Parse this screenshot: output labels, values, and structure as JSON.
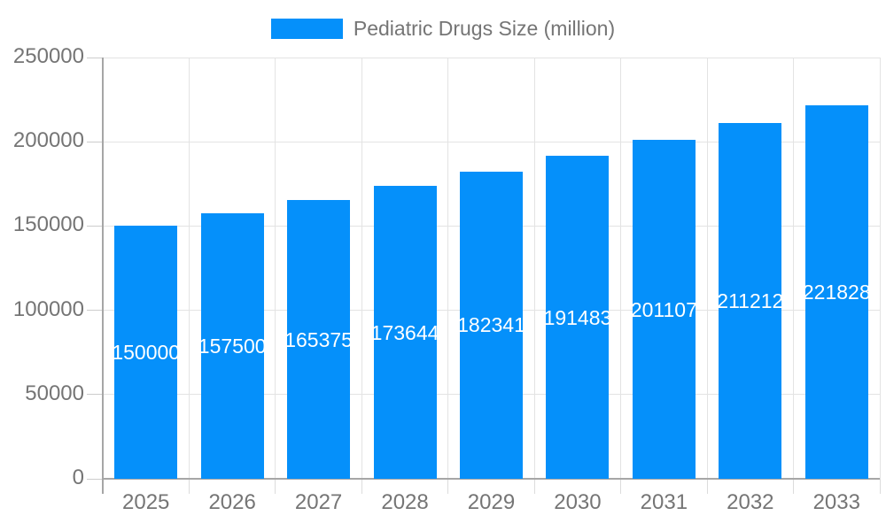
{
  "chart_data": {
    "type": "bar",
    "title": "Pediatric Drugs Size (million)",
    "series_name": "Pediatric Drugs Size (million)",
    "categories": [
      "2025",
      "2026",
      "2027",
      "2028",
      "2029",
      "2030",
      "2031",
      "2032",
      "2033"
    ],
    "values": [
      150000,
      157500,
      165375,
      173644,
      182341,
      191483,
      201107,
      211212,
      221828
    ],
    "xlabel": "",
    "ylabel": "",
    "ylim": [
      0,
      250000
    ],
    "yticks": [
      0,
      50000,
      100000,
      150000,
      200000,
      250000
    ],
    "grid": true,
    "legend_position": "top",
    "colors": {
      "bar": "#0590fa",
      "bar_label": "#ffffff",
      "axis": "#a6a6a6",
      "grid": "#e3e3e3",
      "tick_stub": "#cccccc",
      "x_tick_stub": "#dcdcdc",
      "tick_text": "#757575",
      "background": "#ffffff"
    }
  }
}
